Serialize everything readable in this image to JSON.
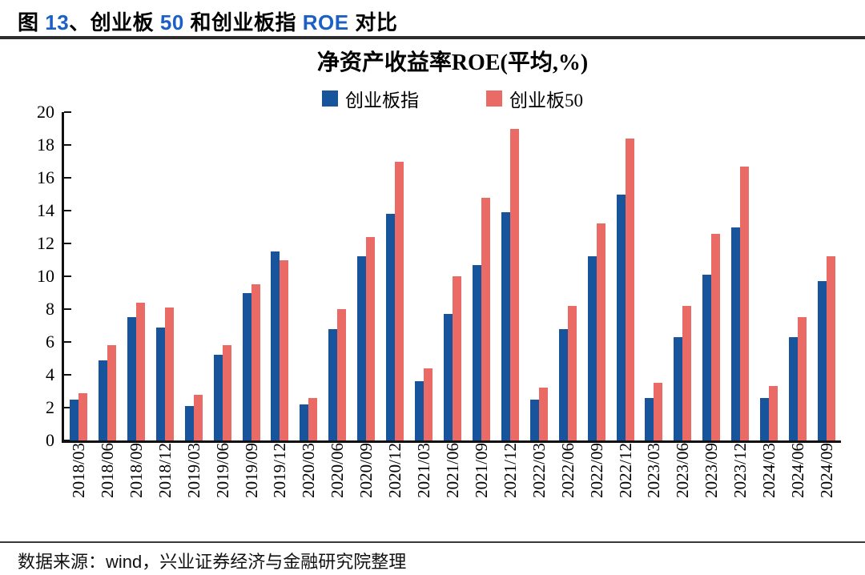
{
  "page": {
    "header": {
      "segments": [
        {
          "text": "图 ",
          "color": "#000000"
        },
        {
          "text": "13",
          "color": "#1b60c6"
        },
        {
          "text": "、创业板 ",
          "color": "#000000"
        },
        {
          "text": "50",
          "color": "#1b60c6"
        },
        {
          "text": " 和创业板指 ",
          "color": "#000000"
        },
        {
          "text": "ROE",
          "color": "#1b60c6"
        },
        {
          "text": " 对比",
          "color": "#000000"
        }
      ]
    },
    "footer": {
      "text": "数据来源：wind，兴业证券经济与金融研究院整理"
    }
  },
  "chart_data": {
    "type": "bar",
    "title": "净资产收益率ROE(平均,%)",
    "categories": [
      "2018/03",
      "2018/06",
      "2018/09",
      "2018/12",
      "2019/03",
      "2019/06",
      "2019/09",
      "2019/12",
      "2020/03",
      "2020/06",
      "2020/09",
      "2020/12",
      "2021/03",
      "2021/06",
      "2021/09",
      "2021/12",
      "2022/03",
      "2022/06",
      "2022/09",
      "2022/12",
      "2023/03",
      "2023/06",
      "2023/09",
      "2023/12",
      "2024/03",
      "2024/06",
      "2024/09"
    ],
    "series": [
      {
        "name": "创业板指",
        "color": "#17549B",
        "values": [
          2.5,
          4.9,
          7.5,
          6.9,
          2.1,
          5.2,
          9.0,
          11.5,
          2.2,
          6.8,
          11.2,
          13.8,
          3.6,
          7.7,
          10.7,
          13.9,
          2.5,
          6.8,
          11.2,
          15.0,
          2.6,
          6.3,
          10.1,
          13.0,
          2.6,
          6.3,
          9.7
        ]
      },
      {
        "name": "创业板50",
        "color": "#EA6B66",
        "values": [
          2.9,
          5.8,
          8.4,
          8.1,
          2.8,
          5.8,
          9.5,
          11.0,
          2.6,
          8.0,
          12.4,
          17.0,
          4.4,
          10.0,
          14.8,
          19.0,
          3.2,
          8.2,
          13.2,
          18.4,
          3.5,
          8.2,
          12.6,
          16.7,
          3.3,
          7.5,
          11.2
        ]
      }
    ],
    "ylim": [
      0,
      20
    ],
    "ytick_step": 2,
    "grid": false,
    "legend_position": "top"
  }
}
